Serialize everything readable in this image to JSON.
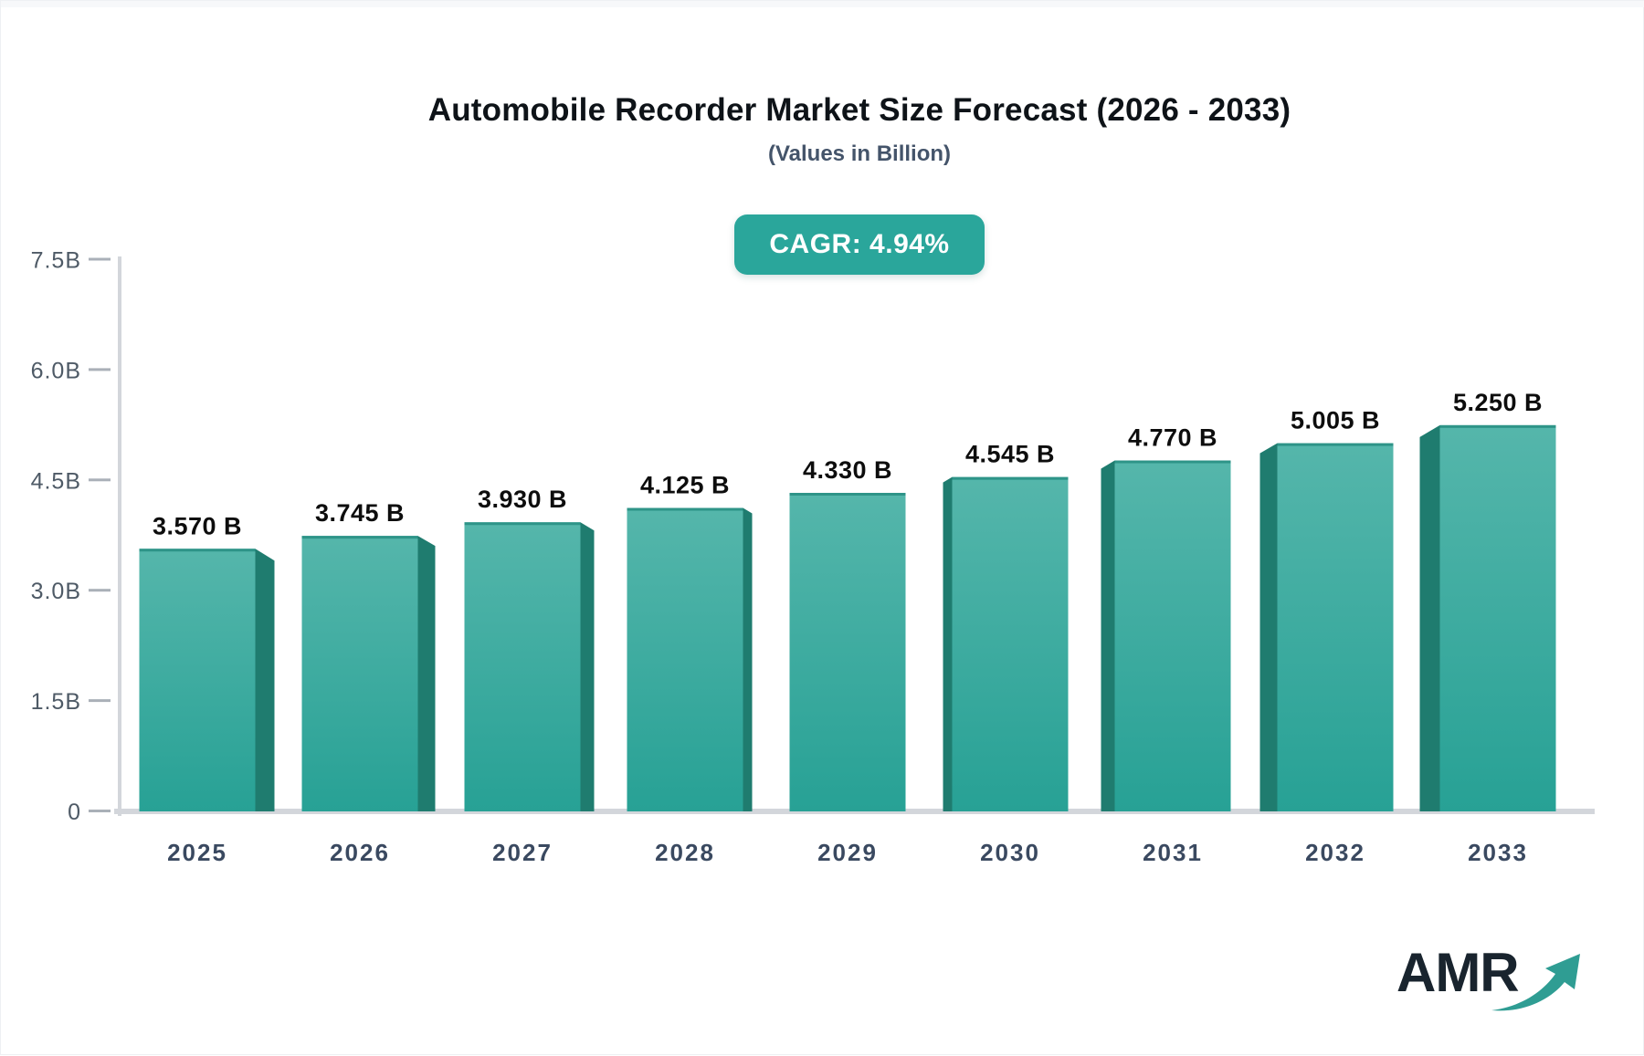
{
  "chart_data": {
    "type": "bar",
    "title": "Automobile Recorder Market Size Forecast (2026 - 2033)",
    "subtitle": "(Values in Billion)",
    "cagr_label": "CAGR: 4.94%",
    "categories": [
      "2025",
      "2026",
      "2027",
      "2028",
      "2029",
      "2030",
      "2031",
      "2032",
      "2033"
    ],
    "values": [
      3.57,
      3.745,
      3.93,
      4.125,
      4.33,
      4.545,
      4.77,
      5.005,
      5.25
    ],
    "value_labels": [
      "3.570 B",
      "3.745 B",
      "3.930 B",
      "4.125 B",
      "4.330 B",
      "4.545 B",
      "4.770 B",
      "5.005 B",
      "5.250 B"
    ],
    "unit": "Billion",
    "xlabel": "",
    "ylabel": "",
    "ylim": [
      0,
      7.5
    ],
    "yticks": [
      {
        "value": 0,
        "label": "0"
      },
      {
        "value": 1.5,
        "label": "1.5B"
      },
      {
        "value": 3.0,
        "label": "3.0B"
      },
      {
        "value": 4.5,
        "label": "4.5B"
      },
      {
        "value": 6.0,
        "label": "6.0B"
      },
      {
        "value": 7.5,
        "label": "7.5B"
      }
    ],
    "grid": false,
    "legend": "none"
  },
  "colors": {
    "accent_teal": "#2aa69b",
    "bar_face_top": "#55b6ab",
    "bar_face_bottom": "#27a195",
    "bar_top_edge": "#2e9488",
    "bar_side": "#1f7c6f",
    "axis_gray": "#d3d6db",
    "tick_dash": "#aab0b8",
    "tick_text": "#4e5a66",
    "year_text": "#3a4960",
    "value_text": "#0d0d0d",
    "logo_navy": "#19242e",
    "logo_swoosh": "#2f9d93"
  },
  "logo": {
    "text": "AMR"
  }
}
